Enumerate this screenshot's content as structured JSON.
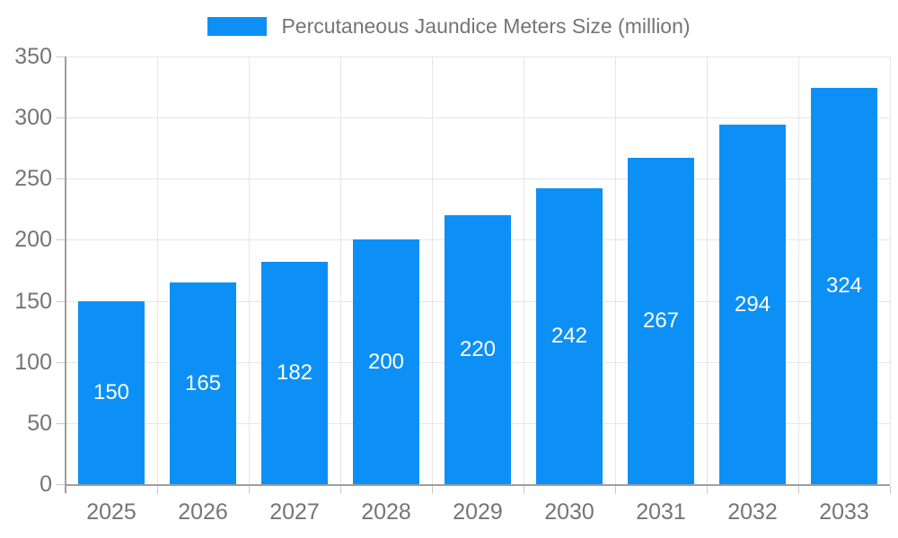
{
  "chart_data": {
    "type": "bar",
    "title": "Percutaneous Jaundice Meters Size (million)",
    "categories": [
      "2025",
      "2026",
      "2027",
      "2028",
      "2029",
      "2030",
      "2031",
      "2032",
      "2033"
    ],
    "values": [
      150,
      165,
      182,
      200,
      220,
      242,
      267,
      294,
      324
    ],
    "xlabel": "",
    "ylabel": "",
    "ylim": [
      0,
      350
    ],
    "yticks": [
      0,
      50,
      100,
      150,
      200,
      250,
      300,
      350
    ],
    "grid": true,
    "legend_position": "top",
    "bar_labels_inside": true
  },
  "legend": {
    "label": "Percutaneous Jaundice Meters Size (million)"
  },
  "colors": {
    "bar": "#0D90F5",
    "grid": "#e6e6e6",
    "axis": "#9e9e9e",
    "tick": "#c9c9c9",
    "axis_text": "#757575",
    "bar_label_text": "#ffffff",
    "background": "#ffffff"
  }
}
